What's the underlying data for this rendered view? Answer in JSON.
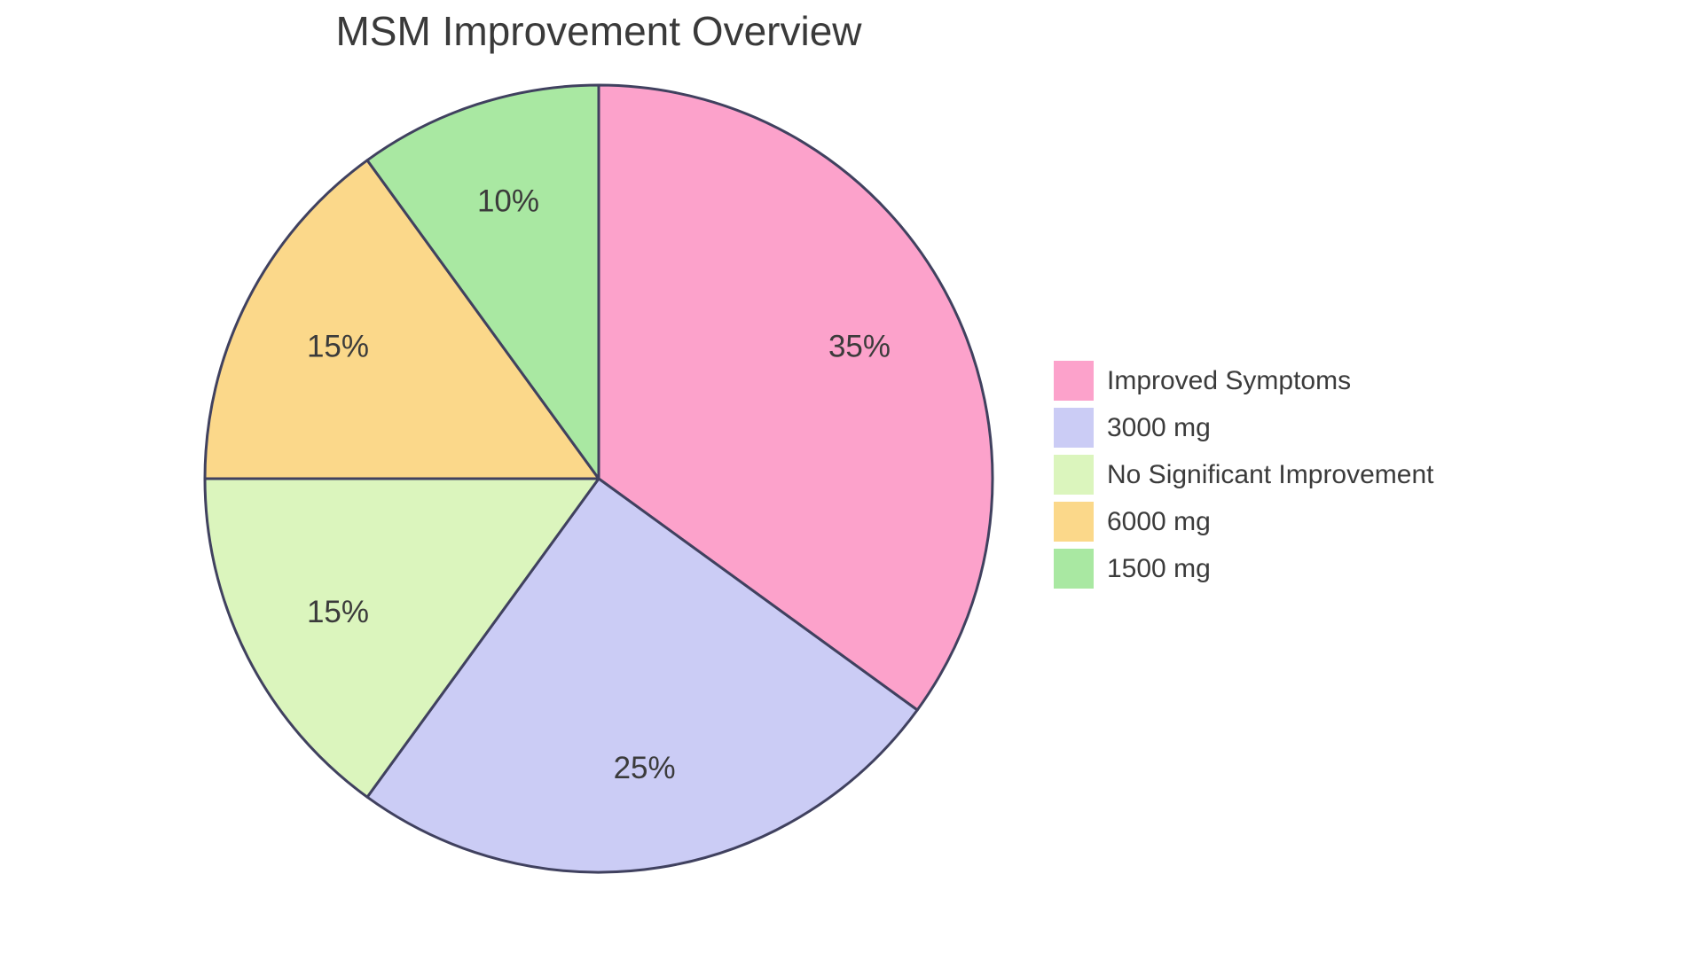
{
  "chart_data": {
    "type": "pie",
    "title": "MSM Improvement Overview",
    "legend_position": "right",
    "slice_order": "clockwise-from-12-oclock",
    "slices": [
      {
        "label": "Improved Symptoms",
        "value": 35,
        "percent_label": "35%",
        "color": "#FCA2CB"
      },
      {
        "label": "3000 mg",
        "value": 25,
        "percent_label": "25%",
        "color": "#CBCCF5"
      },
      {
        "label": "No Significant Improvement",
        "value": 15,
        "percent_label": "15%",
        "color": "#DBF5BD"
      },
      {
        "label": "6000 mg",
        "value": 15,
        "percent_label": "15%",
        "color": "#FBD88A"
      },
      {
        "label": "1500 mg",
        "value": 10,
        "percent_label": "10%",
        "color": "#A9E8A2"
      }
    ],
    "outline_color": "#40415F",
    "label_color": "#3B3B3B",
    "title_color": "#3A3A3A",
    "background": "#FFFFFF"
  }
}
